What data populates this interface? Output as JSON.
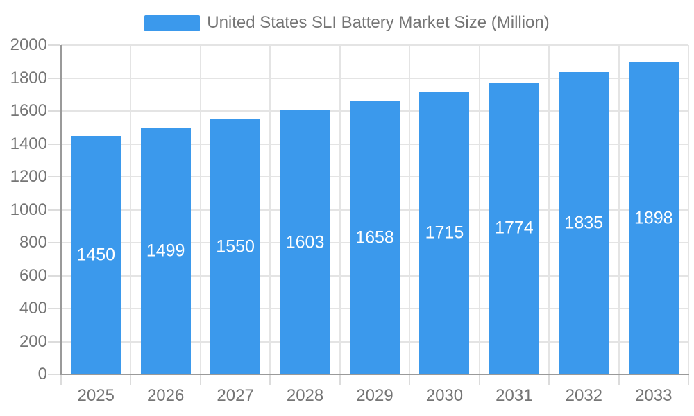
{
  "legend": {
    "label": "United States SLI Battery Market Size (Million)"
  },
  "chart_data": {
    "type": "bar",
    "title": "United States SLI Battery Market Size (Million)",
    "categories": [
      "2025",
      "2026",
      "2027",
      "2028",
      "2029",
      "2030",
      "2031",
      "2032",
      "2033"
    ],
    "values": [
      1450,
      1499,
      1550,
      1603,
      1658,
      1715,
      1774,
      1835,
      1898
    ],
    "xlabel": "",
    "ylabel": "",
    "ylim": [
      0,
      2000
    ],
    "ytick_step": 200,
    "ytick_labels": [
      "0",
      "200",
      "400",
      "600",
      "800",
      "1000",
      "1200",
      "1400",
      "1600",
      "1800",
      "2000"
    ],
    "grid": true,
    "legend_position": "top",
    "colors": {
      "bar": "#3B99EC",
      "gridline": "#E4E4E4",
      "axis": "#9A9A9A",
      "tick": "#DCDCDC",
      "tick_label": "#757575",
      "legend_text": "#757575",
      "value_label": "#FFFFFF",
      "background": "#FFFFFF"
    }
  }
}
